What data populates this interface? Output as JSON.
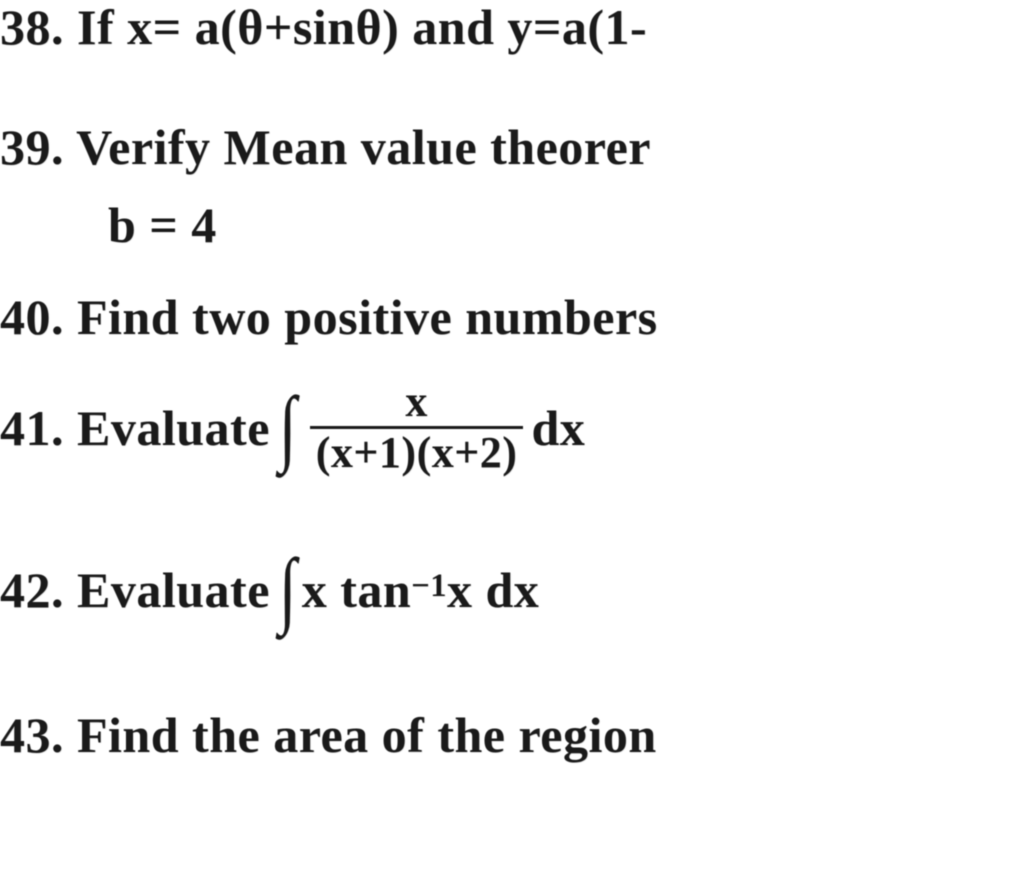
{
  "document": {
    "background_color": "#ffffff",
    "text_color": "#1a1a1a",
    "font_family": "Times New Roman",
    "base_fontsize": 50,
    "font_weight": "bold",
    "lines": {
      "q38": {
        "number": "38.",
        "prefix": "If x= a(",
        "theta1": "θ",
        "plus": "+sin",
        "theta2": "θ",
        "close": ") and y=a(1-"
      },
      "q39": {
        "number": "39.",
        "text": "Verify Mean value theorer",
        "sub": "b = 4"
      },
      "q40": {
        "number": "40.",
        "text": "Find two positive numbers"
      },
      "q41": {
        "number": "41.",
        "prefix": "Evaluate ",
        "frac_num": "x",
        "frac_den": "(x+1)(x+2)",
        "suffix": "dx"
      },
      "q42": {
        "number": "42.",
        "prefix": "Evaluate ",
        "body": "x tan",
        "exp": "−1",
        "after": "x dx"
      },
      "q43": {
        "number": "43.",
        "text": "Find the area of the region"
      }
    }
  }
}
